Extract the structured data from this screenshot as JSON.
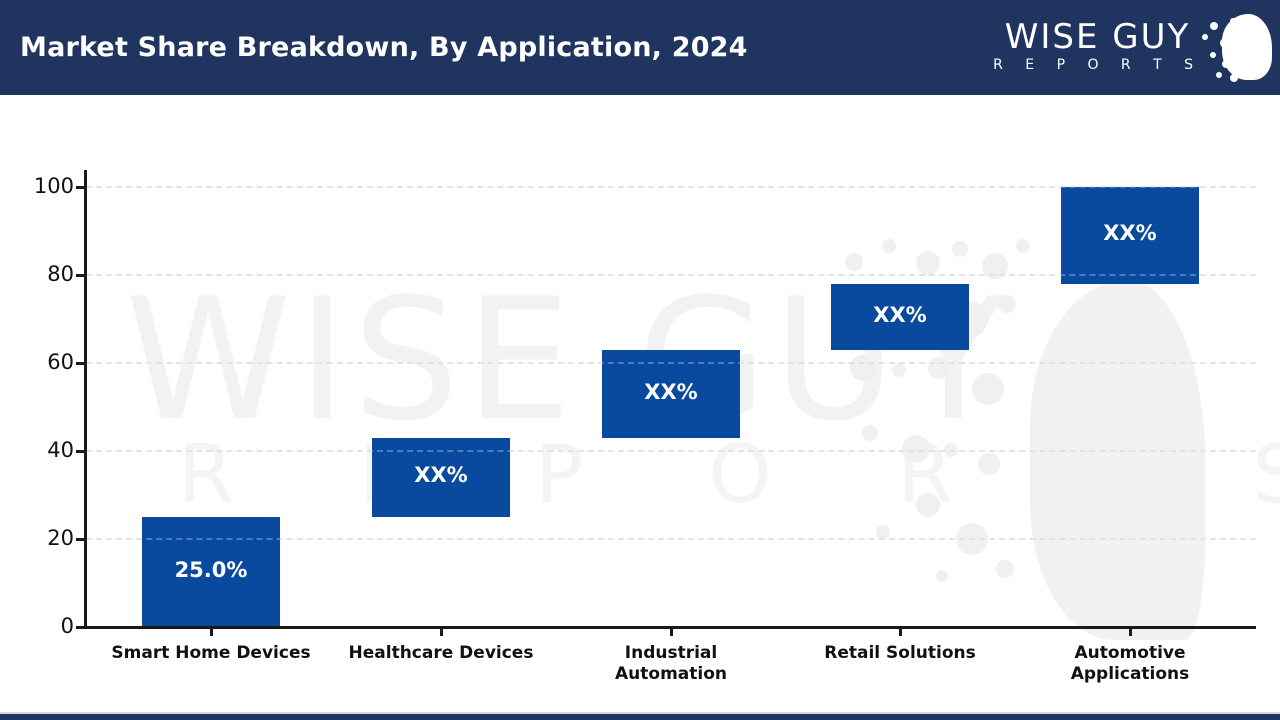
{
  "header": {
    "title": "Market Share Breakdown, By Application, 2024",
    "logo_line1": "WISE GUY",
    "logo_line2": "R E P O R T S"
  },
  "watermark": {
    "line1": "WISE GUY",
    "line2": "R E P O R T S"
  },
  "chart_data": {
    "type": "bar",
    "subtype": "waterfall-floating-bars",
    "title": "Market Share Breakdown, By Application, 2024",
    "xlabel": "",
    "ylabel": "",
    "ylim": [
      0,
      105
    ],
    "yticks": [
      0,
      20,
      40,
      60,
      80,
      100
    ],
    "grid": "horizontal dashed",
    "legend": false,
    "categories": [
      "Smart Home Devices",
      "Healthcare Devices",
      "Industrial\nAutomation",
      "Retail Solutions",
      "Automotive\nApplications"
    ],
    "series": [
      {
        "name": "Market Share",
        "segments": [
          {
            "category": "Smart Home Devices",
            "start": 0,
            "end": 25,
            "value": 25,
            "label": "25.0%"
          },
          {
            "category": "Healthcare Devices",
            "start": 25,
            "end": 43,
            "value": 18,
            "label": "XX%"
          },
          {
            "category": "Industrial Automation",
            "start": 43,
            "end": 63,
            "value": 20,
            "label": "XX%"
          },
          {
            "category": "Retail Solutions",
            "start": 63,
            "end": 78,
            "value": 15,
            "label": "XX%"
          },
          {
            "category": "Automotive Applications",
            "start": 78,
            "end": 100,
            "value": 22,
            "label": "XX%"
          }
        ]
      }
    ]
  },
  "colors": {
    "header_bg": "#1f3560",
    "footer_bg": "#1f3560",
    "bar": "#0a4a9e",
    "bar_label": "#ffffff",
    "grid": "#d9d9d9",
    "axis": "#1a1a1a",
    "tick_text": "#111111",
    "watermark": "#f2f2f2"
  }
}
